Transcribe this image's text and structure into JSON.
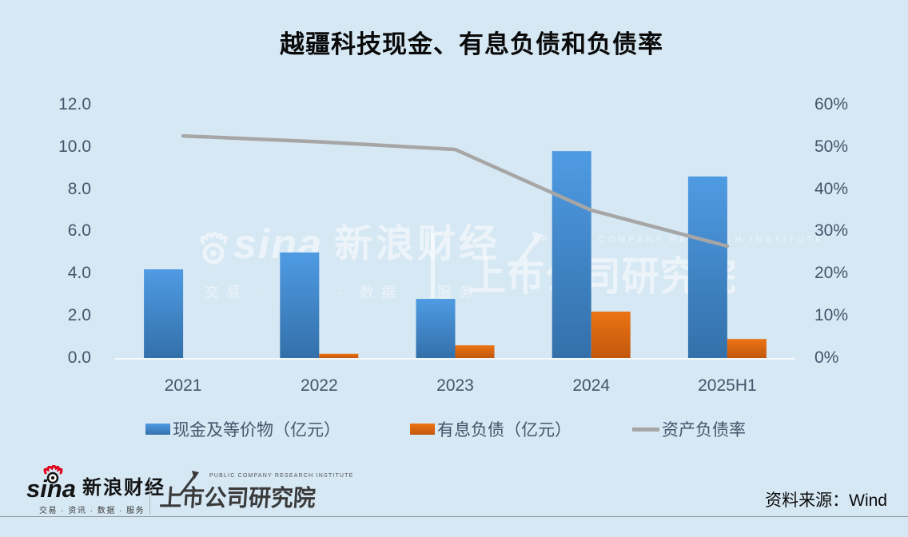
{
  "title": "越疆科技现金、有息负债和负债率",
  "chart_data": {
    "type": "combo-bar-line",
    "title": "越疆科技现金、有息负债和负债率",
    "categories": [
      "2021",
      "2022",
      "2023",
      "2024",
      "2025H1"
    ],
    "series": [
      {
        "name": "现金及等价物（亿元）",
        "type": "bar",
        "axis": "left",
        "values": [
          4.2,
          5.0,
          2.8,
          9.8,
          8.6
        ]
      },
      {
        "name": "有息负债（亿元）",
        "type": "bar",
        "axis": "left",
        "values": [
          0.0,
          0.2,
          0.6,
          2.2,
          0.9
        ]
      },
      {
        "name": "资产负债率",
        "type": "line",
        "axis": "right",
        "values_pct": [
          52.6,
          51.2,
          49.4,
          35.0,
          26.5
        ]
      }
    ],
    "axis_left": {
      "range": [
        0,
        12
      ],
      "ticks": [
        "12.0",
        "10.0",
        "8.0",
        "6.0",
        "4.0",
        "2.0",
        "0.0"
      ]
    },
    "axis_right": {
      "range_pct": [
        0,
        60
      ],
      "ticks": [
        "60%",
        "50%",
        "40%",
        "30%",
        "20%",
        "10%",
        "0%"
      ]
    },
    "legend_position": "bottom",
    "grid": "off"
  },
  "watermarks": {
    "sina_word": "sina",
    "sina_cn": "新浪财经",
    "sina_tagline": "交易 · 资讯 · 数据 · 服务",
    "inst_en": "PUBLIC COMPANY RESEARCH INSTITUTE",
    "inst_cn": "上市公司研究院"
  },
  "footer": {
    "sina_word": "sina",
    "sina_cn": "新浪财经",
    "sina_tagline": "交易 · 资讯 · 数据 · 服务",
    "inst_en": "PUBLIC COMPANY RESEARCH INSTITUTE",
    "inst_cn": "上市公司研究院",
    "source": "资料来源：Wind"
  },
  "colors": {
    "background": "#d6e8f4",
    "bar_cash_top": "#4f9be3",
    "bar_cash_bottom": "#3370aa",
    "bar_debt_top": "#ec7414",
    "bar_debt_bottom": "#c2570c",
    "line_ratio": "#a6a6a6",
    "axis_text": "#44546a",
    "sina_red": "#e2001a",
    "logo_dark": "#3a3a3a",
    "rule": "#8d97a0"
  }
}
